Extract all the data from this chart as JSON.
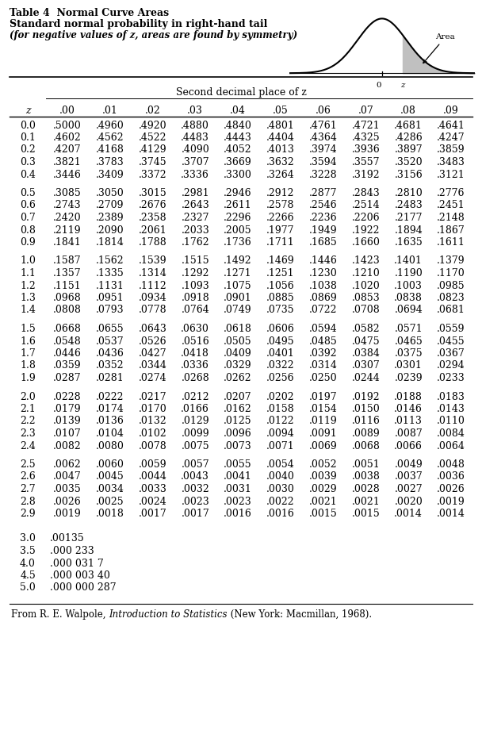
{
  "title1": "Table 4  Normal Curve Areas",
  "title2": "Standard normal probability in right-hand tail",
  "title3": "(for negative values of z, areas are found by symmetry)",
  "col_header": "Second decimal place of z",
  "z_label": "z",
  "col_labels": [
    ".00",
    ".01",
    ".02",
    ".03",
    ".04",
    ".05",
    ".06",
    ".07",
    ".08",
    ".09"
  ],
  "footer_part1": "From R. E. Walpole, ",
  "footer_italic": "Introduction to Statistics",
  "footer_part3": " (New York: Macmillan, 1968).",
  "rows": [
    [
      "0.0",
      ".5000",
      ".4960",
      ".4920",
      ".4880",
      ".4840",
      ".4801",
      ".4761",
      ".4721",
      ".4681",
      ".4641"
    ],
    [
      "0.1",
      ".4602",
      ".4562",
      ".4522",
      ".4483",
      ".4443",
      ".4404",
      ".4364",
      ".4325",
      ".4286",
      ".4247"
    ],
    [
      "0.2",
      ".4207",
      ".4168",
      ".4129",
      ".4090",
      ".4052",
      ".4013",
      ".3974",
      ".3936",
      ".3897",
      ".3859"
    ],
    [
      "0.3",
      ".3821",
      ".3783",
      ".3745",
      ".3707",
      ".3669",
      ".3632",
      ".3594",
      ".3557",
      ".3520",
      ".3483"
    ],
    [
      "0.4",
      ".3446",
      ".3409",
      ".3372",
      ".3336",
      ".3300",
      ".3264",
      ".3228",
      ".3192",
      ".3156",
      ".3121"
    ],
    [
      "0.5",
      ".3085",
      ".3050",
      ".3015",
      ".2981",
      ".2946",
      ".2912",
      ".2877",
      ".2843",
      ".2810",
      ".2776"
    ],
    [
      "0.6",
      ".2743",
      ".2709",
      ".2676",
      ".2643",
      ".2611",
      ".2578",
      ".2546",
      ".2514",
      ".2483",
      ".2451"
    ],
    [
      "0.7",
      ".2420",
      ".2389",
      ".2358",
      ".2327",
      ".2296",
      ".2266",
      ".2236",
      ".2206",
      ".2177",
      ".2148"
    ],
    [
      "0.8",
      ".2119",
      ".2090",
      ".2061",
      ".2033",
      ".2005",
      ".1977",
      ".1949",
      ".1922",
      ".1894",
      ".1867"
    ],
    [
      "0.9",
      ".1841",
      ".1814",
      ".1788",
      ".1762",
      ".1736",
      ".1711",
      ".1685",
      ".1660",
      ".1635",
      ".1611"
    ],
    [
      "1.0",
      ".1587",
      ".1562",
      ".1539",
      ".1515",
      ".1492",
      ".1469",
      ".1446",
      ".1423",
      ".1401",
      ".1379"
    ],
    [
      "1.1",
      ".1357",
      ".1335",
      ".1314",
      ".1292",
      ".1271",
      ".1251",
      ".1230",
      ".1210",
      ".1190",
      ".1170"
    ],
    [
      "1.2",
      ".1151",
      ".1131",
      ".1112",
      ".1093",
      ".1075",
      ".1056",
      ".1038",
      ".1020",
      ".1003",
      ".0985"
    ],
    [
      "1.3",
      ".0968",
      ".0951",
      ".0934",
      ".0918",
      ".0901",
      ".0885",
      ".0869",
      ".0853",
      ".0838",
      ".0823"
    ],
    [
      "1.4",
      ".0808",
      ".0793",
      ".0778",
      ".0764",
      ".0749",
      ".0735",
      ".0722",
      ".0708",
      ".0694",
      ".0681"
    ],
    [
      "1.5",
      ".0668",
      ".0655",
      ".0643",
      ".0630",
      ".0618",
      ".0606",
      ".0594",
      ".0582",
      ".0571",
      ".0559"
    ],
    [
      "1.6",
      ".0548",
      ".0537",
      ".0526",
      ".0516",
      ".0505",
      ".0495",
      ".0485",
      ".0475",
      ".0465",
      ".0455"
    ],
    [
      "1.7",
      ".0446",
      ".0436",
      ".0427",
      ".0418",
      ".0409",
      ".0401",
      ".0392",
      ".0384",
      ".0375",
      ".0367"
    ],
    [
      "1.8",
      ".0359",
      ".0352",
      ".0344",
      ".0336",
      ".0329",
      ".0322",
      ".0314",
      ".0307",
      ".0301",
      ".0294"
    ],
    [
      "1.9",
      ".0287",
      ".0281",
      ".0274",
      ".0268",
      ".0262",
      ".0256",
      ".0250",
      ".0244",
      ".0239",
      ".0233"
    ],
    [
      "2.0",
      ".0228",
      ".0222",
      ".0217",
      ".0212",
      ".0207",
      ".0202",
      ".0197",
      ".0192",
      ".0188",
      ".0183"
    ],
    [
      "2.1",
      ".0179",
      ".0174",
      ".0170",
      ".0166",
      ".0162",
      ".0158",
      ".0154",
      ".0150",
      ".0146",
      ".0143"
    ],
    [
      "2.2",
      ".0139",
      ".0136",
      ".0132",
      ".0129",
      ".0125",
      ".0122",
      ".0119",
      ".0116",
      ".0113",
      ".0110"
    ],
    [
      "2.3",
      ".0107",
      ".0104",
      ".0102",
      ".0099",
      ".0096",
      ".0094",
      ".0091",
      ".0089",
      ".0087",
      ".0084"
    ],
    [
      "2.4",
      ".0082",
      ".0080",
      ".0078",
      ".0075",
      ".0073",
      ".0071",
      ".0069",
      ".0068",
      ".0066",
      ".0064"
    ],
    [
      "2.5",
      ".0062",
      ".0060",
      ".0059",
      ".0057",
      ".0055",
      ".0054",
      ".0052",
      ".0051",
      ".0049",
      ".0048"
    ],
    [
      "2.6",
      ".0047",
      ".0045",
      ".0044",
      ".0043",
      ".0041",
      ".0040",
      ".0039",
      ".0038",
      ".0037",
      ".0036"
    ],
    [
      "2.7",
      ".0035",
      ".0034",
      ".0033",
      ".0032",
      ".0031",
      ".0030",
      ".0029",
      ".0028",
      ".0027",
      ".0026"
    ],
    [
      "2.8",
      ".0026",
      ".0025",
      ".0024",
      ".0023",
      ".0023",
      ".0022",
      ".0021",
      ".0021",
      ".0020",
      ".0019"
    ],
    [
      "2.9",
      ".0019",
      ".0018",
      ".0017",
      ".0017",
      ".0016",
      ".0016",
      ".0015",
      ".0015",
      ".0014",
      ".0014"
    ]
  ],
  "special_rows": [
    [
      "3.0",
      ".00135"
    ],
    [
      "3.5",
      ".000 233"
    ],
    [
      "4.0",
      ".000 031 7"
    ],
    [
      "4.5",
      ".000 003 40"
    ],
    [
      "5.0",
      ".000 000 287"
    ]
  ],
  "group_breaks": [
    4,
    9,
    14,
    19,
    24,
    29
  ],
  "bg_color": "#ffffff",
  "text_color": "#000000"
}
